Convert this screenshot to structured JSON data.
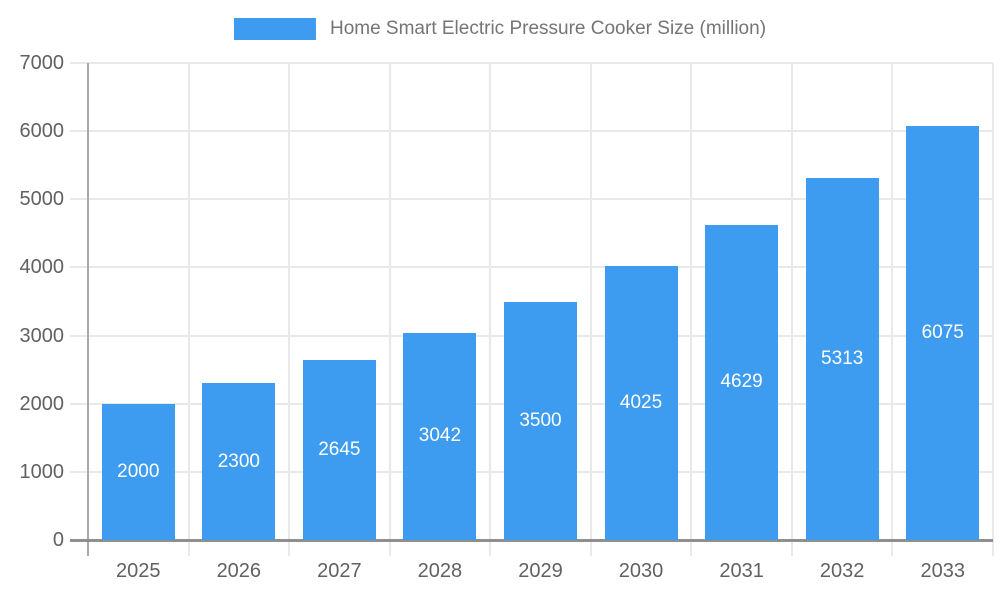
{
  "chart_data": {
    "type": "bar",
    "title": "Home Smart Electric Pressure Cooker Size (million)",
    "categories": [
      "2025",
      "2026",
      "2027",
      "2028",
      "2029",
      "2030",
      "2031",
      "2032",
      "2033"
    ],
    "values": [
      2000,
      2300,
      2645,
      3042,
      3500,
      4025,
      4629,
      5313,
      6075
    ],
    "ylim": [
      0,
      7000
    ],
    "ytick_step": 1000,
    "grid": true,
    "legend_position": "top",
    "value_label_position": "inside-center",
    "colors": {
      "bar": "#3D9CF0",
      "gridline": "#E9E9E9",
      "y_axis_line": "#A9A9A9",
      "x_axis_line": "#8F8F8F",
      "tick_label": "#616161",
      "legend_text": "#757575",
      "value_label": "#FFFFFF",
      "background": "#FFFFFF"
    }
  }
}
